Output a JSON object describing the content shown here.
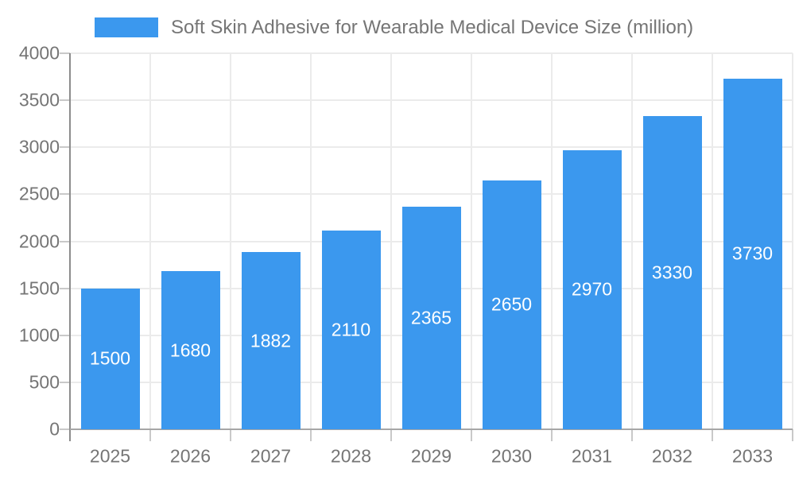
{
  "legend": {
    "label": "Soft Skin Adhesive for Wearable Medical Device Size (million)"
  },
  "chart_data": {
    "type": "bar",
    "title": "Soft Skin Adhesive for Wearable Medical Device Size (million)",
    "series_name": "Soft Skin Adhesive for Wearable Medical Device Size (million)",
    "categories": [
      "2025",
      "2026",
      "2027",
      "2028",
      "2029",
      "2030",
      "2031",
      "2032",
      "2033"
    ],
    "values": [
      1500,
      1680,
      1882,
      2110,
      2365,
      2650,
      2970,
      3330,
      3730
    ],
    "xlabel": "",
    "ylabel": "",
    "ylim": [
      0,
      4000
    ],
    "yticks": [
      0,
      500,
      1000,
      1500,
      2000,
      2500,
      3000,
      3500,
      4000
    ],
    "grid": true,
    "legend_position": "top-left",
    "data_labels": "inside-center",
    "colors": {
      "bar": "#3B98EE",
      "data_label": "#ffffff",
      "axis_label": "#757575",
      "gridline": "#ebebeb",
      "y_axis_line": "#8c8c8c",
      "x_axis_line": "#a6a6a6",
      "tick": "#c9c9c9"
    }
  }
}
